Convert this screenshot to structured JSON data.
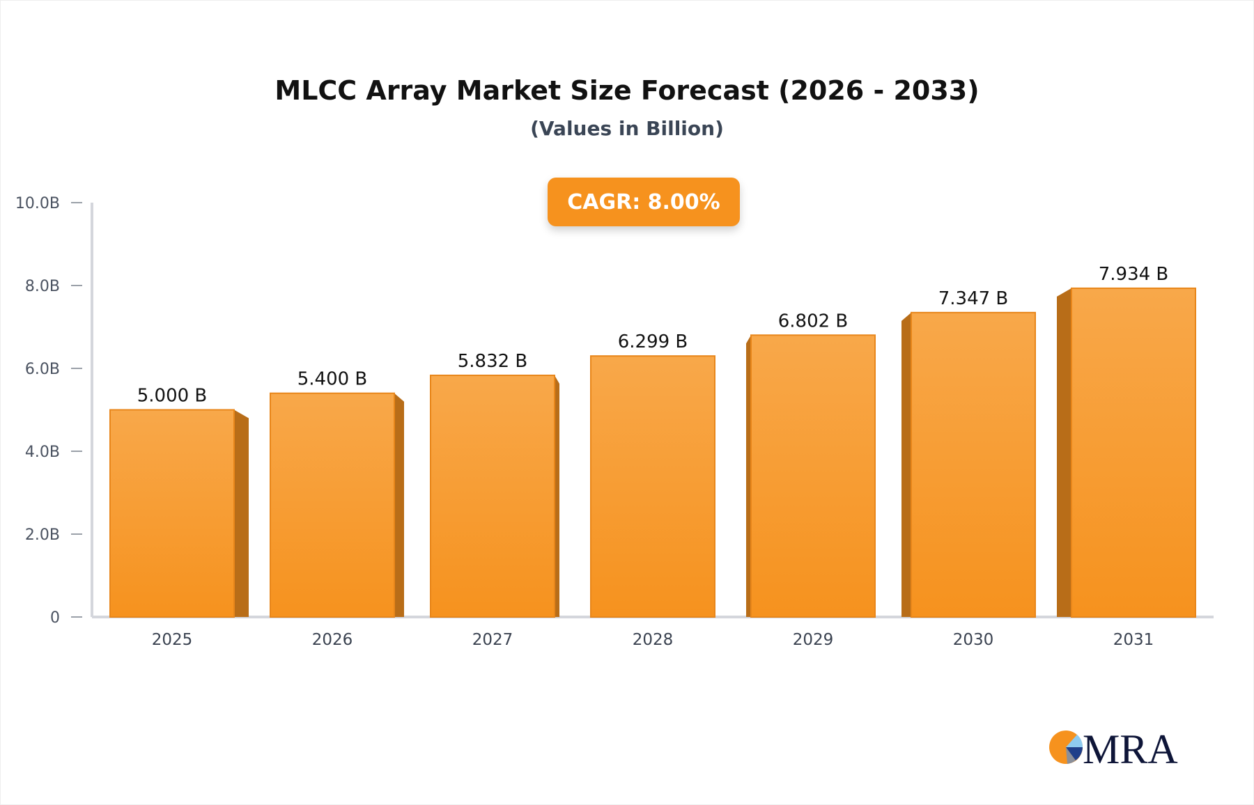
{
  "chart_data": {
    "type": "bar",
    "title": "MLCC Array Market Size Forecast (2026 - 2033)",
    "subtitle": "(Values in Billion)",
    "annotation": "CAGR: 8.00%",
    "categories": [
      "2025",
      "2026",
      "2027",
      "2028",
      "2029",
      "2030",
      "2031"
    ],
    "values": [
      5.0,
      5.4,
      5.832,
      6.299,
      6.802,
      7.347,
      7.934
    ],
    "data_labels": [
      "5.000 B",
      "5.400 B",
      "5.832 B",
      "6.299 B",
      "6.802 B",
      "7.347 B",
      "7.934 B"
    ],
    "yticks": [
      0,
      2,
      4,
      6,
      8,
      10
    ],
    "ytick_labels": [
      "0",
      "2.0B",
      "4.0B",
      "6.0B",
      "8.0B",
      "10.0B"
    ],
    "ylim": [
      0,
      10
    ],
    "grid": false,
    "colors": {
      "bar": "#f6921e",
      "bar_top": "#f8a84a",
      "bar_side": "#b86d18",
      "annotation_bg": "#f6921e"
    }
  },
  "logo": {
    "text": "MRA",
    "colors": [
      "#f6921e",
      "#8ecbf0",
      "#1f3f8a",
      "#0e1538"
    ]
  }
}
